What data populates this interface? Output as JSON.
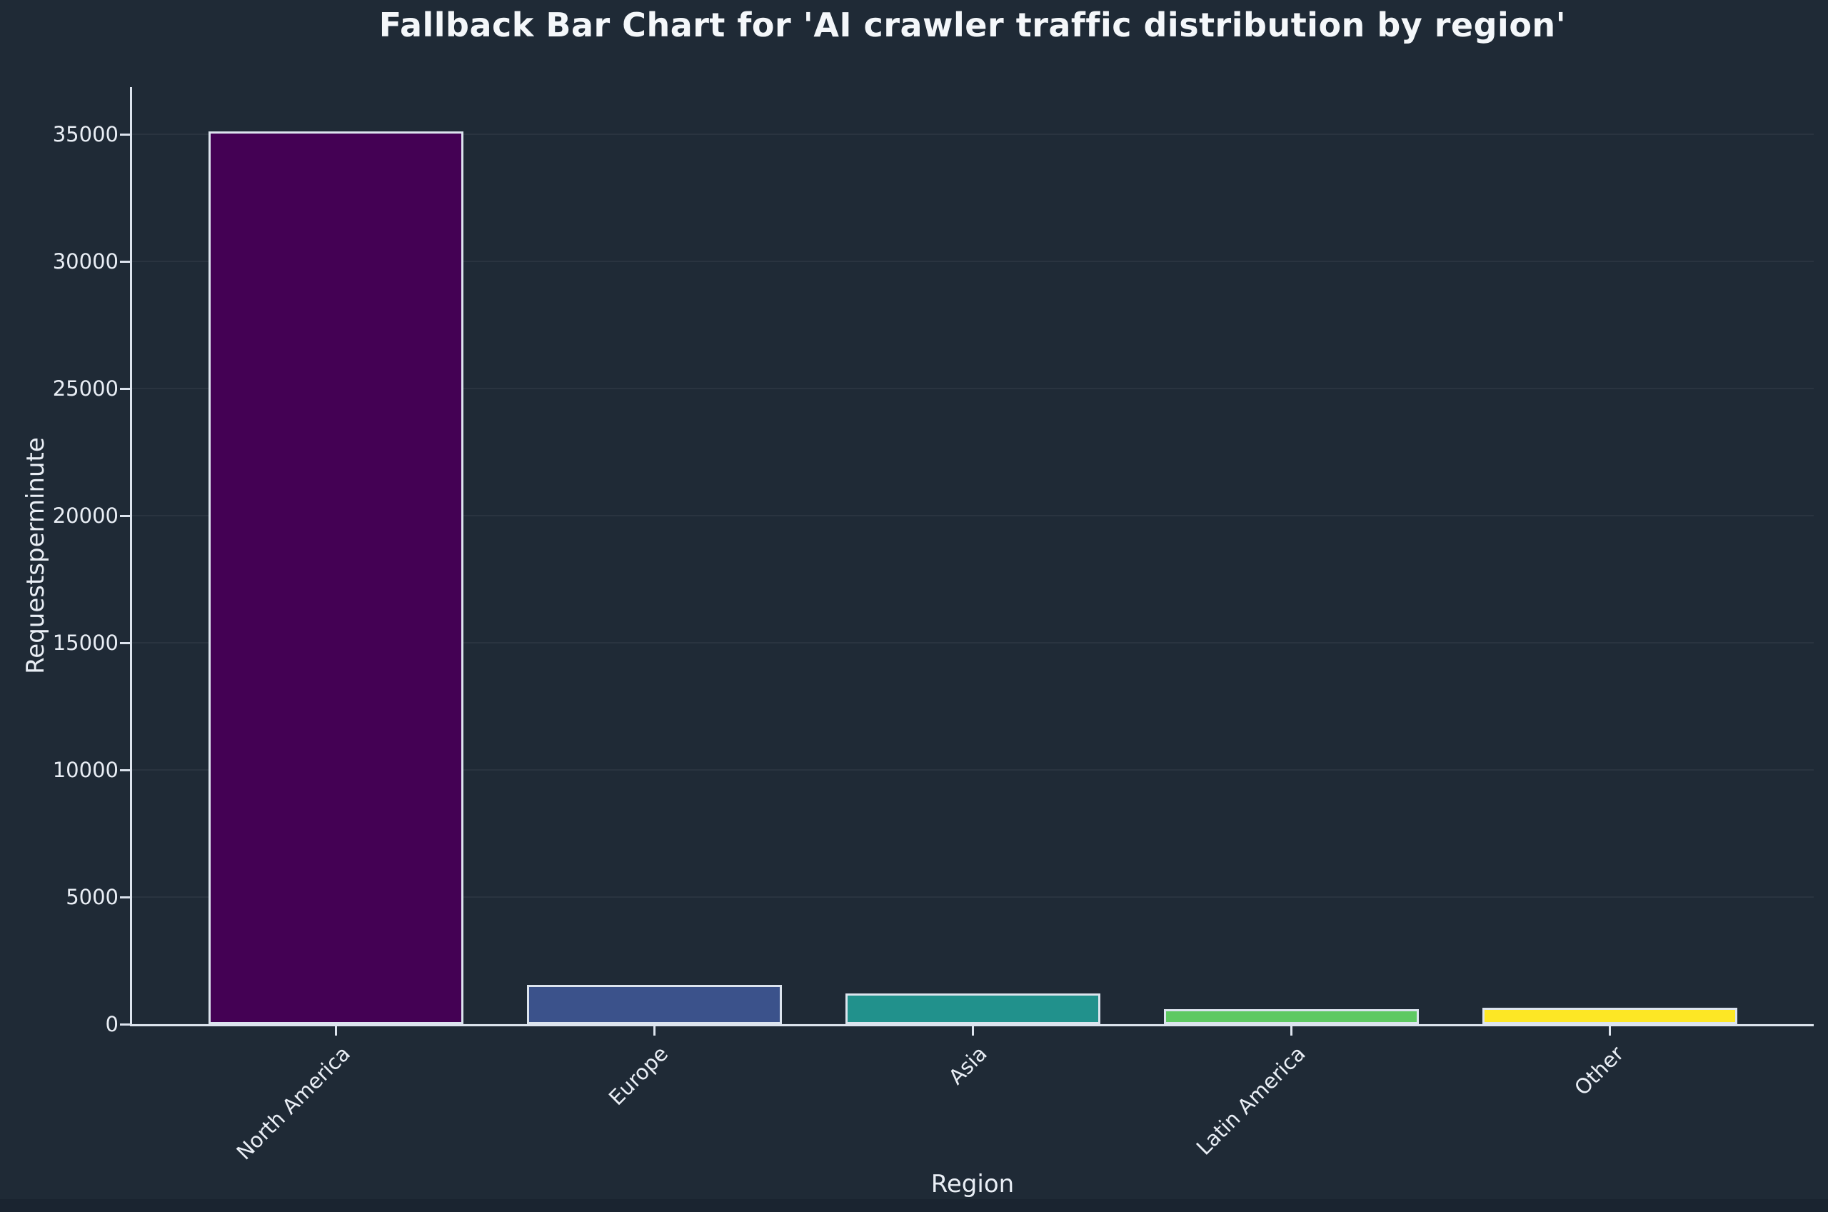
{
  "figure": {
    "background_color": "#1f2a36",
    "footer_strip_color": "#1a2430",
    "text_color": "#e9eef5",
    "axis_color": "#dde4ee",
    "gridline_color": "rgba(255,255,255,0.05)"
  },
  "chart_data": {
    "type": "bar",
    "title": "Fallback Bar Chart for 'AI crawler traffic distribution by region'",
    "xlabel": "Region",
    "ylabel": "Requestsperminute",
    "categories": [
      "North America",
      "Europe",
      "Asia",
      "Latin America",
      "Other"
    ],
    "values": [
      35100,
      1550,
      1200,
      600,
      640
    ],
    "bar_colors": [
      "#440154",
      "#3b528b",
      "#21918c",
      "#5ec962",
      "#fde725"
    ],
    "bar_edge_color": "#dce4ee",
    "yticks": [
      0,
      5000,
      10000,
      15000,
      20000,
      25000,
      30000,
      35000
    ],
    "ylim": [
      0,
      36855
    ],
    "xlim": [
      -0.64,
      4.64
    ],
    "bar_width_fraction": 0.8,
    "grid": "horizontal-faint",
    "legend": "none",
    "x_tick_label_rotation_deg": 45
  }
}
